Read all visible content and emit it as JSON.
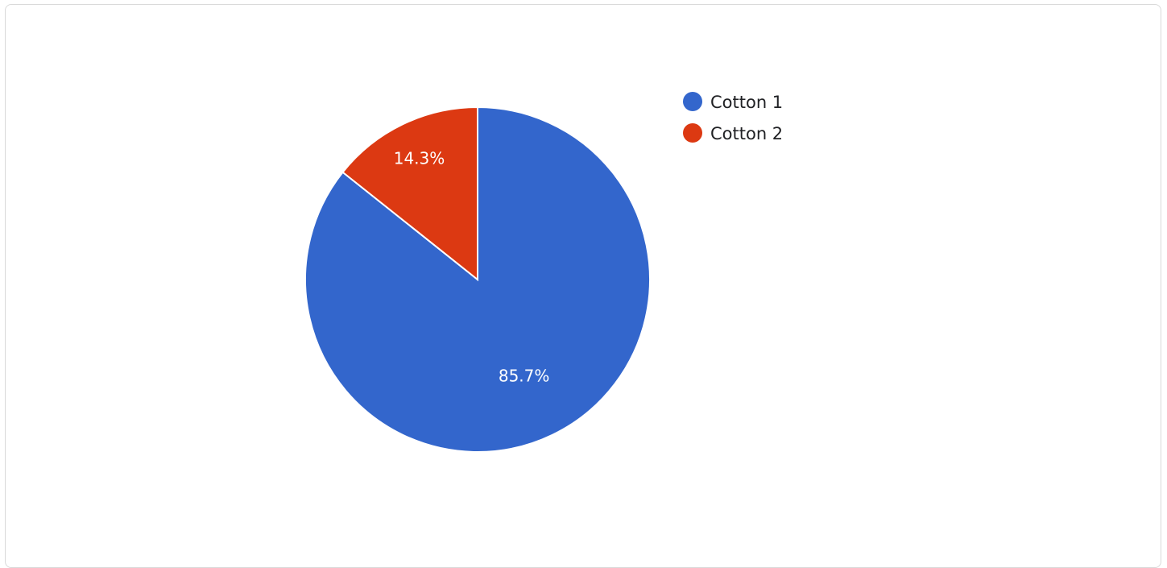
{
  "chart_data": {
    "type": "pie",
    "title": "",
    "legend_position": "right",
    "slices": [
      {
        "label": "Cotton 1",
        "value": 85.7,
        "display": "85.7%",
        "color": "#3366cc"
      },
      {
        "label": "Cotton 2",
        "value": 14.3,
        "display": "14.3%",
        "color": "#dc3912"
      }
    ]
  }
}
